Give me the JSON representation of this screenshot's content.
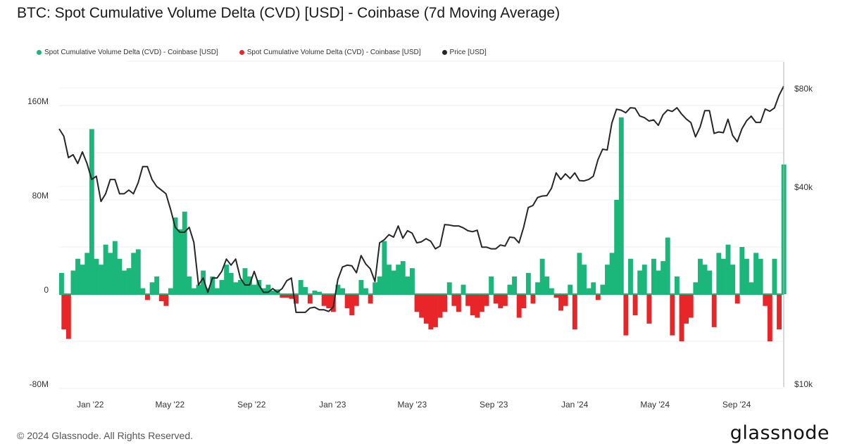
{
  "title": "BTC: Spot Cumulative Volume Delta (CVD) [USD] - Coinbase (7d Moving Average)",
  "footer": "© 2024 Glassnode. All Rights Reserved.",
  "logo_text": "glassnode",
  "colors": {
    "positive": "#1bb67a",
    "negative": "#e8262a",
    "price": "#262626",
    "grid": "#ececec"
  },
  "chart_data": {
    "type": "bar+line",
    "title": "BTC: Spot Cumulative Volume Delta (CVD) [USD] - Coinbase (7d Moving Average)",
    "legend": [
      {
        "label": "Spot Cumulative Volume Delta (CVD) - Coinbase [USD]",
        "color": "#1bb67a"
      },
      {
        "label": "Spot Cumulative Volume Delta (CVD) - Coinbase [USD]",
        "color": "#e8262a"
      },
      {
        "label": "Price [USD]",
        "color": "#262626"
      }
    ],
    "legend_position": "top-left",
    "start_date": "2021-11-15",
    "interval_days": 7,
    "y_left": {
      "unit": "USD millions",
      "range": [
        -80,
        180
      ],
      "ticks": [
        {
          "value": 160,
          "label": "160M"
        },
        {
          "value": 80,
          "label": "80M"
        },
        {
          "value": 0,
          "label": "0"
        },
        {
          "value": -80,
          "label": "-80M"
        }
      ]
    },
    "y_right": {
      "unit": "USD thousands",
      "scale": "log",
      "range": [
        10,
        85
      ],
      "ticks": [
        {
          "value": 80,
          "label": "$80k"
        },
        {
          "value": 40,
          "label": "$40k"
        },
        {
          "value": 10,
          "label": "$10k"
        }
      ]
    },
    "x_ticks": [
      {
        "date": "2022-01-01",
        "label": "Jan '22"
      },
      {
        "date": "2022-05-01",
        "label": "May '22"
      },
      {
        "date": "2022-09-01",
        "label": "Sep '22"
      },
      {
        "date": "2023-01-01",
        "label": "Jan '23"
      },
      {
        "date": "2023-05-01",
        "label": "May '23"
      },
      {
        "date": "2023-09-01",
        "label": "Sep '23"
      },
      {
        "date": "2024-01-01",
        "label": "Jan '24"
      },
      {
        "date": "2024-05-01",
        "label": "May '24"
      },
      {
        "date": "2024-09-01",
        "label": "Sep '24"
      }
    ],
    "cvd_musd": [
      18,
      -30,
      -38,
      20,
      30,
      25,
      35,
      140,
      30,
      25,
      42,
      35,
      45,
      30,
      20,
      22,
      35,
      38,
      5,
      -5,
      10,
      15,
      -6,
      -10,
      5,
      65,
      55,
      70,
      15,
      5,
      8,
      20,
      5,
      15,
      5,
      12,
      25,
      18,
      10,
      12,
      22,
      15,
      8,
      12,
      5,
      8,
      3,
      4,
      -3,
      -3,
      -4,
      -8,
      12,
      6,
      -8,
      3,
      2,
      -10,
      -12,
      -15,
      8,
      5,
      -12,
      -18,
      -10,
      12,
      5,
      -8,
      10,
      15,
      45,
      25,
      20,
      25,
      28,
      15,
      22,
      -15,
      -20,
      -25,
      -30,
      -28,
      -20,
      -15,
      10,
      -10,
      -15,
      8,
      -10,
      -18,
      -20,
      -15,
      -10,
      15,
      -8,
      -12,
      -10,
      8,
      15,
      -20,
      -12,
      18,
      -8,
      10,
      30,
      15,
      5,
      -3,
      -14,
      -10,
      8,
      -30,
      35,
      25,
      5,
      10,
      -5,
      8,
      25,
      35,
      80,
      150,
      -35,
      30,
      -18,
      20,
      25,
      -25,
      30,
      20,
      28,
      48,
      -35,
      15,
      -40,
      -25,
      -20,
      10,
      30,
      25,
      20,
      -28,
      35,
      30,
      42,
      25,
      -8,
      40,
      30,
      10,
      35,
      30,
      -10,
      -40,
      30,
      -30,
      110
    ],
    "price_kusd": [
      60,
      57,
      49,
      50,
      47,
      51,
      47,
      42,
      43,
      36,
      38,
      42,
      42,
      38,
      38,
      39,
      38,
      41,
      46,
      46,
      42,
      40,
      39,
      38,
      34,
      30,
      29,
      29,
      30,
      27,
      20,
      21,
      19,
      21,
      21,
      22,
      24,
      23,
      24,
      21,
      20,
      20,
      22,
      20,
      19,
      19,
      19.5,
      19,
      19.5,
      20.6,
      21,
      16.5,
      16.5,
      16.5,
      17,
      17.1,
      16.8,
      16.8,
      16.6,
      17.1,
      20.8,
      22.7,
      23,
      22.9,
      21.8,
      24.6,
      23.2,
      22.4,
      20.5,
      26.9,
      27.5,
      28.5,
      28,
      30.3,
      27.8,
      29.3,
      28.8,
      26.9,
      27.1,
      27.7,
      27.2,
      25.8,
      26.3,
      30.6,
      30.5,
      30.3,
      30.3,
      29.9,
      29.3,
      29.1,
      29.4,
      26.1,
      26.1,
      25.8,
      25.8,
      26.5,
      26.3,
      28,
      27.9,
      26.9,
      30,
      34.5,
      35,
      37,
      37.4,
      37.5,
      39.5,
      44,
      42,
      43.7,
      42.3,
      44,
      41.7,
      41.6,
      42,
      43,
      48.3,
      52,
      51.7,
      62.5,
      68.9,
      68.4,
      67.2,
      69.6,
      69.4,
      65.7,
      64.9,
      63.4,
      63.9,
      61.5,
      66.2,
      68.5,
      67.8,
      69.6,
      66.6,
      64.3,
      62.7,
      56.7,
      60.8,
      68.2,
      68.2,
      58.1,
      58.7,
      58.4,
      64.2,
      57.3,
      54.8,
      60,
      63.5,
      65.6,
      62.8,
      62.8,
      69,
      67.9,
      69.5,
      76,
      81
    ]
  }
}
